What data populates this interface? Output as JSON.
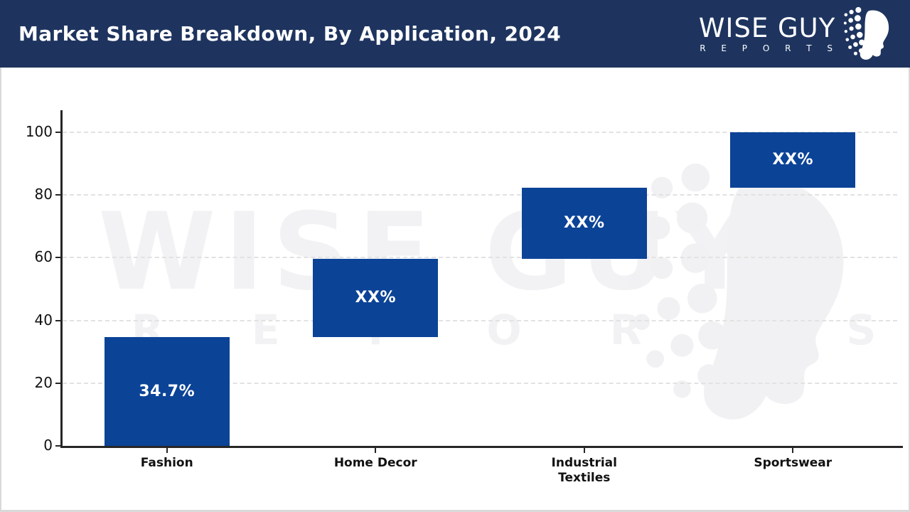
{
  "header": {
    "title": "Market Share Breakdown, By Application, 2024",
    "background": "#1e345f",
    "logo": {
      "line1": "WISE GUY",
      "line2": "R E P O R T S"
    }
  },
  "watermark": {
    "line1": "WISE GUY",
    "line2": "R E P O R T S"
  },
  "chart_data": {
    "type": "bar",
    "subtype": "waterfall",
    "title": "Market Share Breakdown, By Application, 2024",
    "xlabel": "",
    "ylabel": "",
    "categories": [
      "Fashion",
      "Home Decor",
      "Industrial Textiles",
      "Sportswear"
    ],
    "segments": [
      {
        "label": "Fashion",
        "start": 0,
        "end": 34.7,
        "value_label": "34.7%"
      },
      {
        "label": "Home Decor",
        "start": 34.7,
        "end": 59.7,
        "value_label": "XX%"
      },
      {
        "label": "Industrial Textiles",
        "start": 59.7,
        "end": 82.4,
        "value_label": "XX%"
      },
      {
        "label": "Sportswear",
        "start": 82.4,
        "end": 100,
        "value_label": "XX%"
      }
    ],
    "yticks": [
      0,
      20,
      40,
      60,
      80,
      100
    ],
    "ylim": [
      0,
      100
    ],
    "bar_color": "#0b4397",
    "grid": "horizontal-dashed",
    "legend": "none"
  }
}
